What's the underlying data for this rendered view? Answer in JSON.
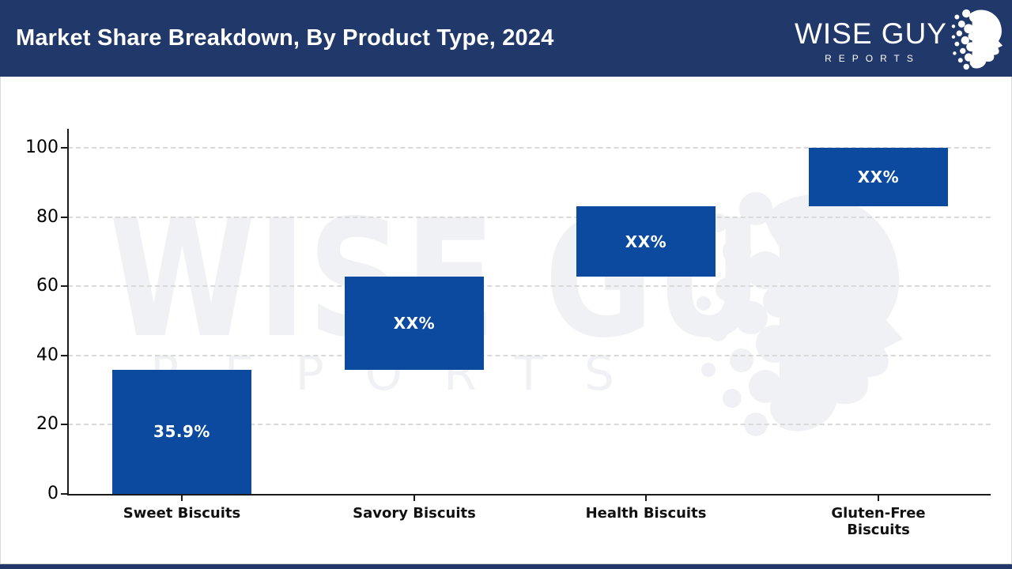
{
  "header": {
    "title": "Market Share Breakdown, By Product Type, 2024",
    "bg_color": "#21386a",
    "logo": {
      "line1": "WISE GUY",
      "line2": "REPORTS",
      "icon": "wiseguy-head-icon"
    }
  },
  "watermark": {
    "line1": "WISE GUY",
    "line2": "REPORTS",
    "icon": "wiseguy-head-watermark",
    "color": "#f0f1f4"
  },
  "chart_data": {
    "type": "bar",
    "subtype": "waterfall",
    "title": "",
    "xlabel": "",
    "ylabel": "",
    "categories": [
      "Sweet Biscuits",
      "Savory Biscuits",
      "Health Biscuits",
      "Gluten-Free Biscuits"
    ],
    "segments": [
      {
        "category": "Sweet Biscuits",
        "start": 0,
        "end": 35.9,
        "label": "35.9%"
      },
      {
        "category": "Savory Biscuits",
        "start": 35.9,
        "end": 62.7,
        "label": "XX%"
      },
      {
        "category": "Health Biscuits",
        "start": 62.7,
        "end": 83.0,
        "label": "XX%"
      },
      {
        "category": "Gluten-Free Biscuits",
        "start": 83.0,
        "end": 100,
        "label": "XX%"
      }
    ],
    "y_ticks": [
      0,
      20,
      40,
      60,
      80,
      100
    ],
    "ylim": [
      0,
      105
    ],
    "bar_color": "#0b4a9e",
    "grid": true,
    "gridline_style": "dashed",
    "legend": false
  }
}
